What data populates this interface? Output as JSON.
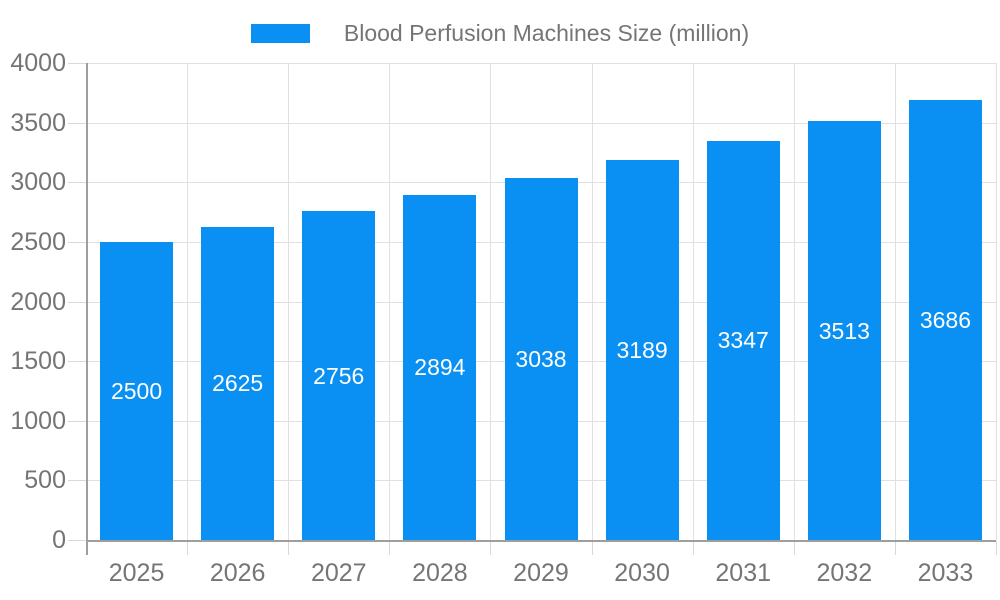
{
  "legend": {
    "label": "Blood Perfusion Machines Size (million)"
  },
  "chart_data": {
    "type": "bar",
    "title": "Blood Perfusion Machines Size (million)",
    "categories": [
      "2025",
      "2026",
      "2027",
      "2028",
      "2029",
      "2030",
      "2031",
      "2032",
      "2033"
    ],
    "values": [
      2500,
      2625,
      2756,
      2894,
      3038,
      3189,
      3347,
      3513,
      3686
    ],
    "series_name": "Blood Perfusion Machines Size (million)",
    "xlabel": "",
    "ylabel": "",
    "ylim": [
      0,
      4000
    ],
    "yticks": [
      0,
      500,
      1000,
      1500,
      2000,
      2500,
      3000,
      3500,
      4000
    ],
    "grid": true,
    "legend_position": "top",
    "value_labels": "inside-center",
    "colors": {
      "bar": "#0990f2",
      "value_label": "#ffffff",
      "axis_line": "#9e9e9e",
      "gridline": "#e0e0e0",
      "tick": "#d9d9d9",
      "tick_label": "#757575"
    }
  }
}
